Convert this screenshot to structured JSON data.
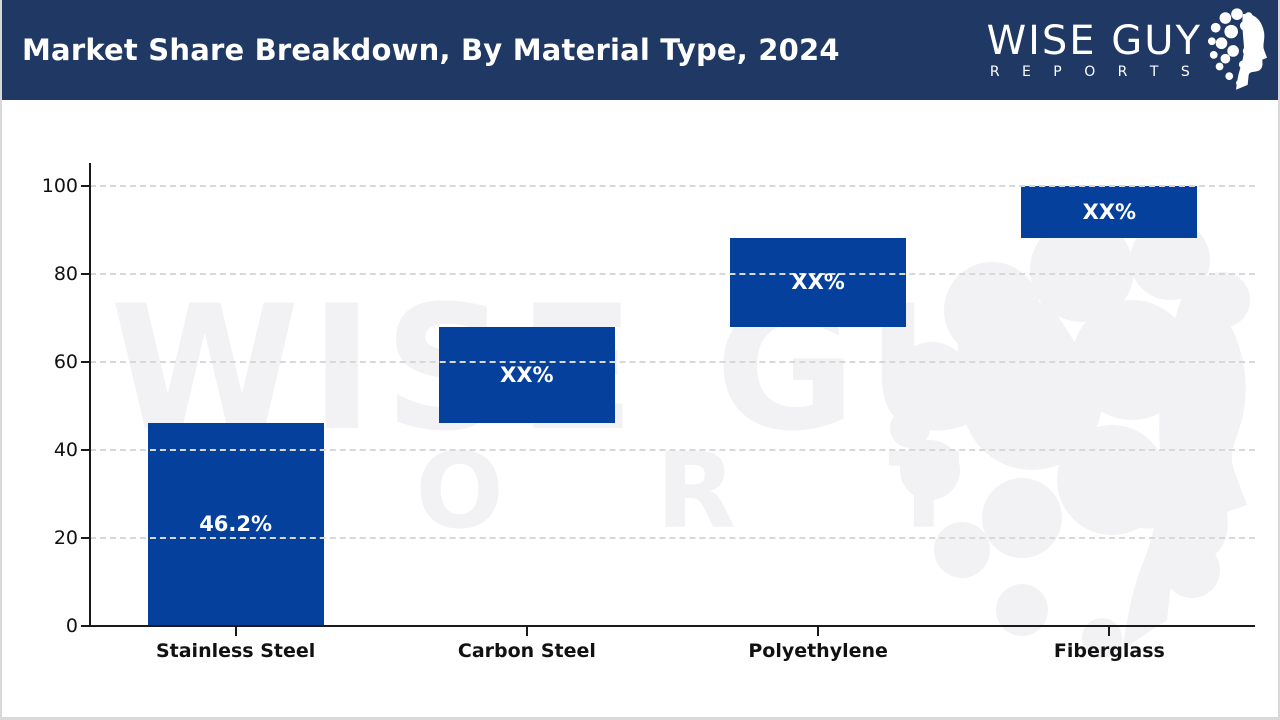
{
  "header": {
    "title": "Market Share Breakdown, By Material Type, 2024",
    "bg_color": "#1f3864",
    "logo": {
      "line1": "WISE GUY",
      "line2": "R E P O R T S"
    }
  },
  "watermark": {
    "line1": "WISE GUY",
    "line2": "P O R T S"
  },
  "chart_data": {
    "type": "bar",
    "variant": "waterfall",
    "title": "",
    "xlabel": "",
    "ylabel": "",
    "categories": [
      "Stainless Steel",
      "Carbon Steel",
      "Polyethylene",
      "Fiberglass"
    ],
    "segments": [
      {
        "category": "Stainless Steel",
        "start": 0,
        "end": 46.2,
        "label": "46.2%"
      },
      {
        "category": "Carbon Steel",
        "start": 46.2,
        "end": 68.0,
        "label": "XX%"
      },
      {
        "category": "Polyethylene",
        "start": 68.0,
        "end": 88.2,
        "label": "XX%"
      },
      {
        "category": "Fiberglass",
        "start": 88.2,
        "end": 100.0,
        "label": "XX%"
      }
    ],
    "y_ticks": [
      0,
      20,
      40,
      60,
      80,
      100
    ],
    "ylim": [
      0,
      105
    ],
    "grid": "horizontal-dashed",
    "legend": "none",
    "bar_color": "#05419c",
    "bar_label_color": "#ffffff",
    "axis_color": "#1a1a1a",
    "gridline_color": "#d8d8d8"
  }
}
